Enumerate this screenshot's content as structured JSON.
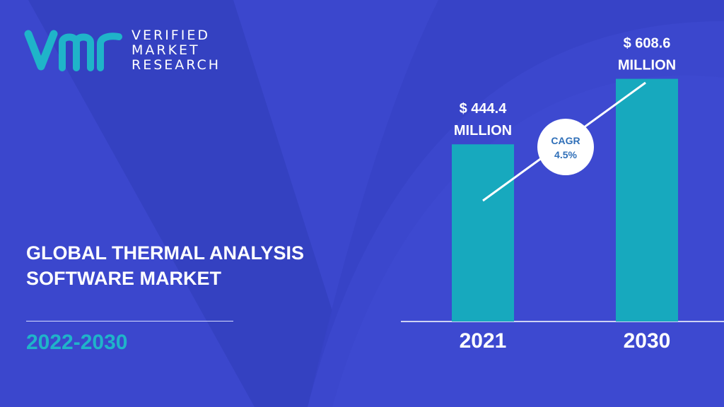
{
  "brand": {
    "line1": "VERIFIED",
    "line2": "MARKET",
    "line3": "RESEARCH",
    "logo_mark": "vmr-logo",
    "logo_color": "#1fb4c9"
  },
  "headline": {
    "line1": "GLOBAL THERMAL ANALYSIS",
    "line2": "SOFTWARE MARKET"
  },
  "period": "2022-2030",
  "colors": {
    "background": "#3b47cd",
    "background_dark": "#3440c0",
    "bar": "#17a9be",
    "accent_text": "#1fb4c9",
    "cagr_text": "#2f6fb8"
  },
  "chart_data": {
    "type": "bar",
    "categories": [
      "2021",
      "2030"
    ],
    "values": [
      444.4,
      608.6
    ],
    "data_labels": [
      [
        "$ 444.4",
        "MILLION"
      ],
      [
        "$ 608.6",
        "MILLION"
      ]
    ],
    "cagr": {
      "label": "CAGR",
      "value": "4.5%"
    },
    "title": "",
    "xlabel": "",
    "ylabel": "",
    "grid": false
  }
}
